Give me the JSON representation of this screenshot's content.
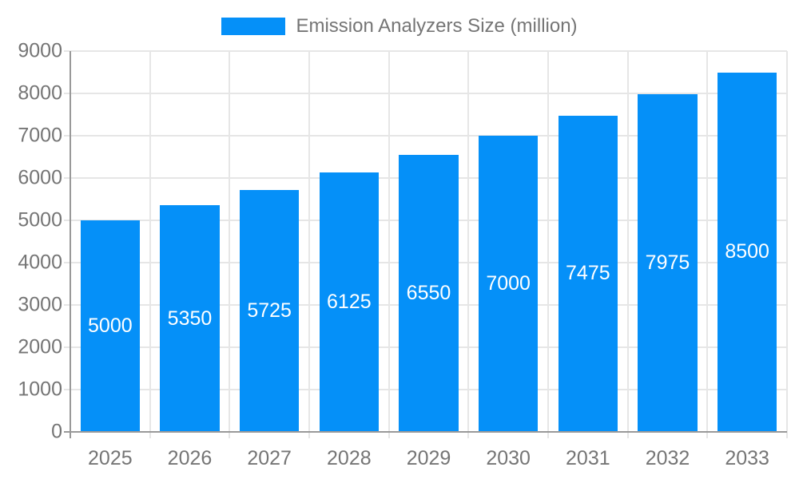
{
  "chart_data": {
    "type": "bar",
    "title": "Emission Analyzers Size (million)",
    "legend_position": "top",
    "categories": [
      "2025",
      "2026",
      "2027",
      "2028",
      "2029",
      "2030",
      "2031",
      "2032",
      "2033"
    ],
    "series": [
      {
        "name": "Emission Analyzers Size (million)",
        "values": [
          5000,
          5350,
          5725,
          6125,
          6550,
          7000,
          7475,
          7975,
          8500
        ]
      }
    ],
    "xlabel": "",
    "ylabel": "",
    "ylim": [
      0,
      9000
    ],
    "yticks": [
      0,
      1000,
      2000,
      3000,
      4000,
      5000,
      6000,
      7000,
      8000,
      9000
    ],
    "grid": true,
    "bar_value_labels_visible": true
  },
  "colors": {
    "bar": "#0590f8",
    "grid": "#e6e6e6",
    "axis": "#999999",
    "tick_text": "#757575",
    "legend_text": "#757575",
    "bar_label_text": "#ffffff",
    "background": "#ffffff"
  }
}
